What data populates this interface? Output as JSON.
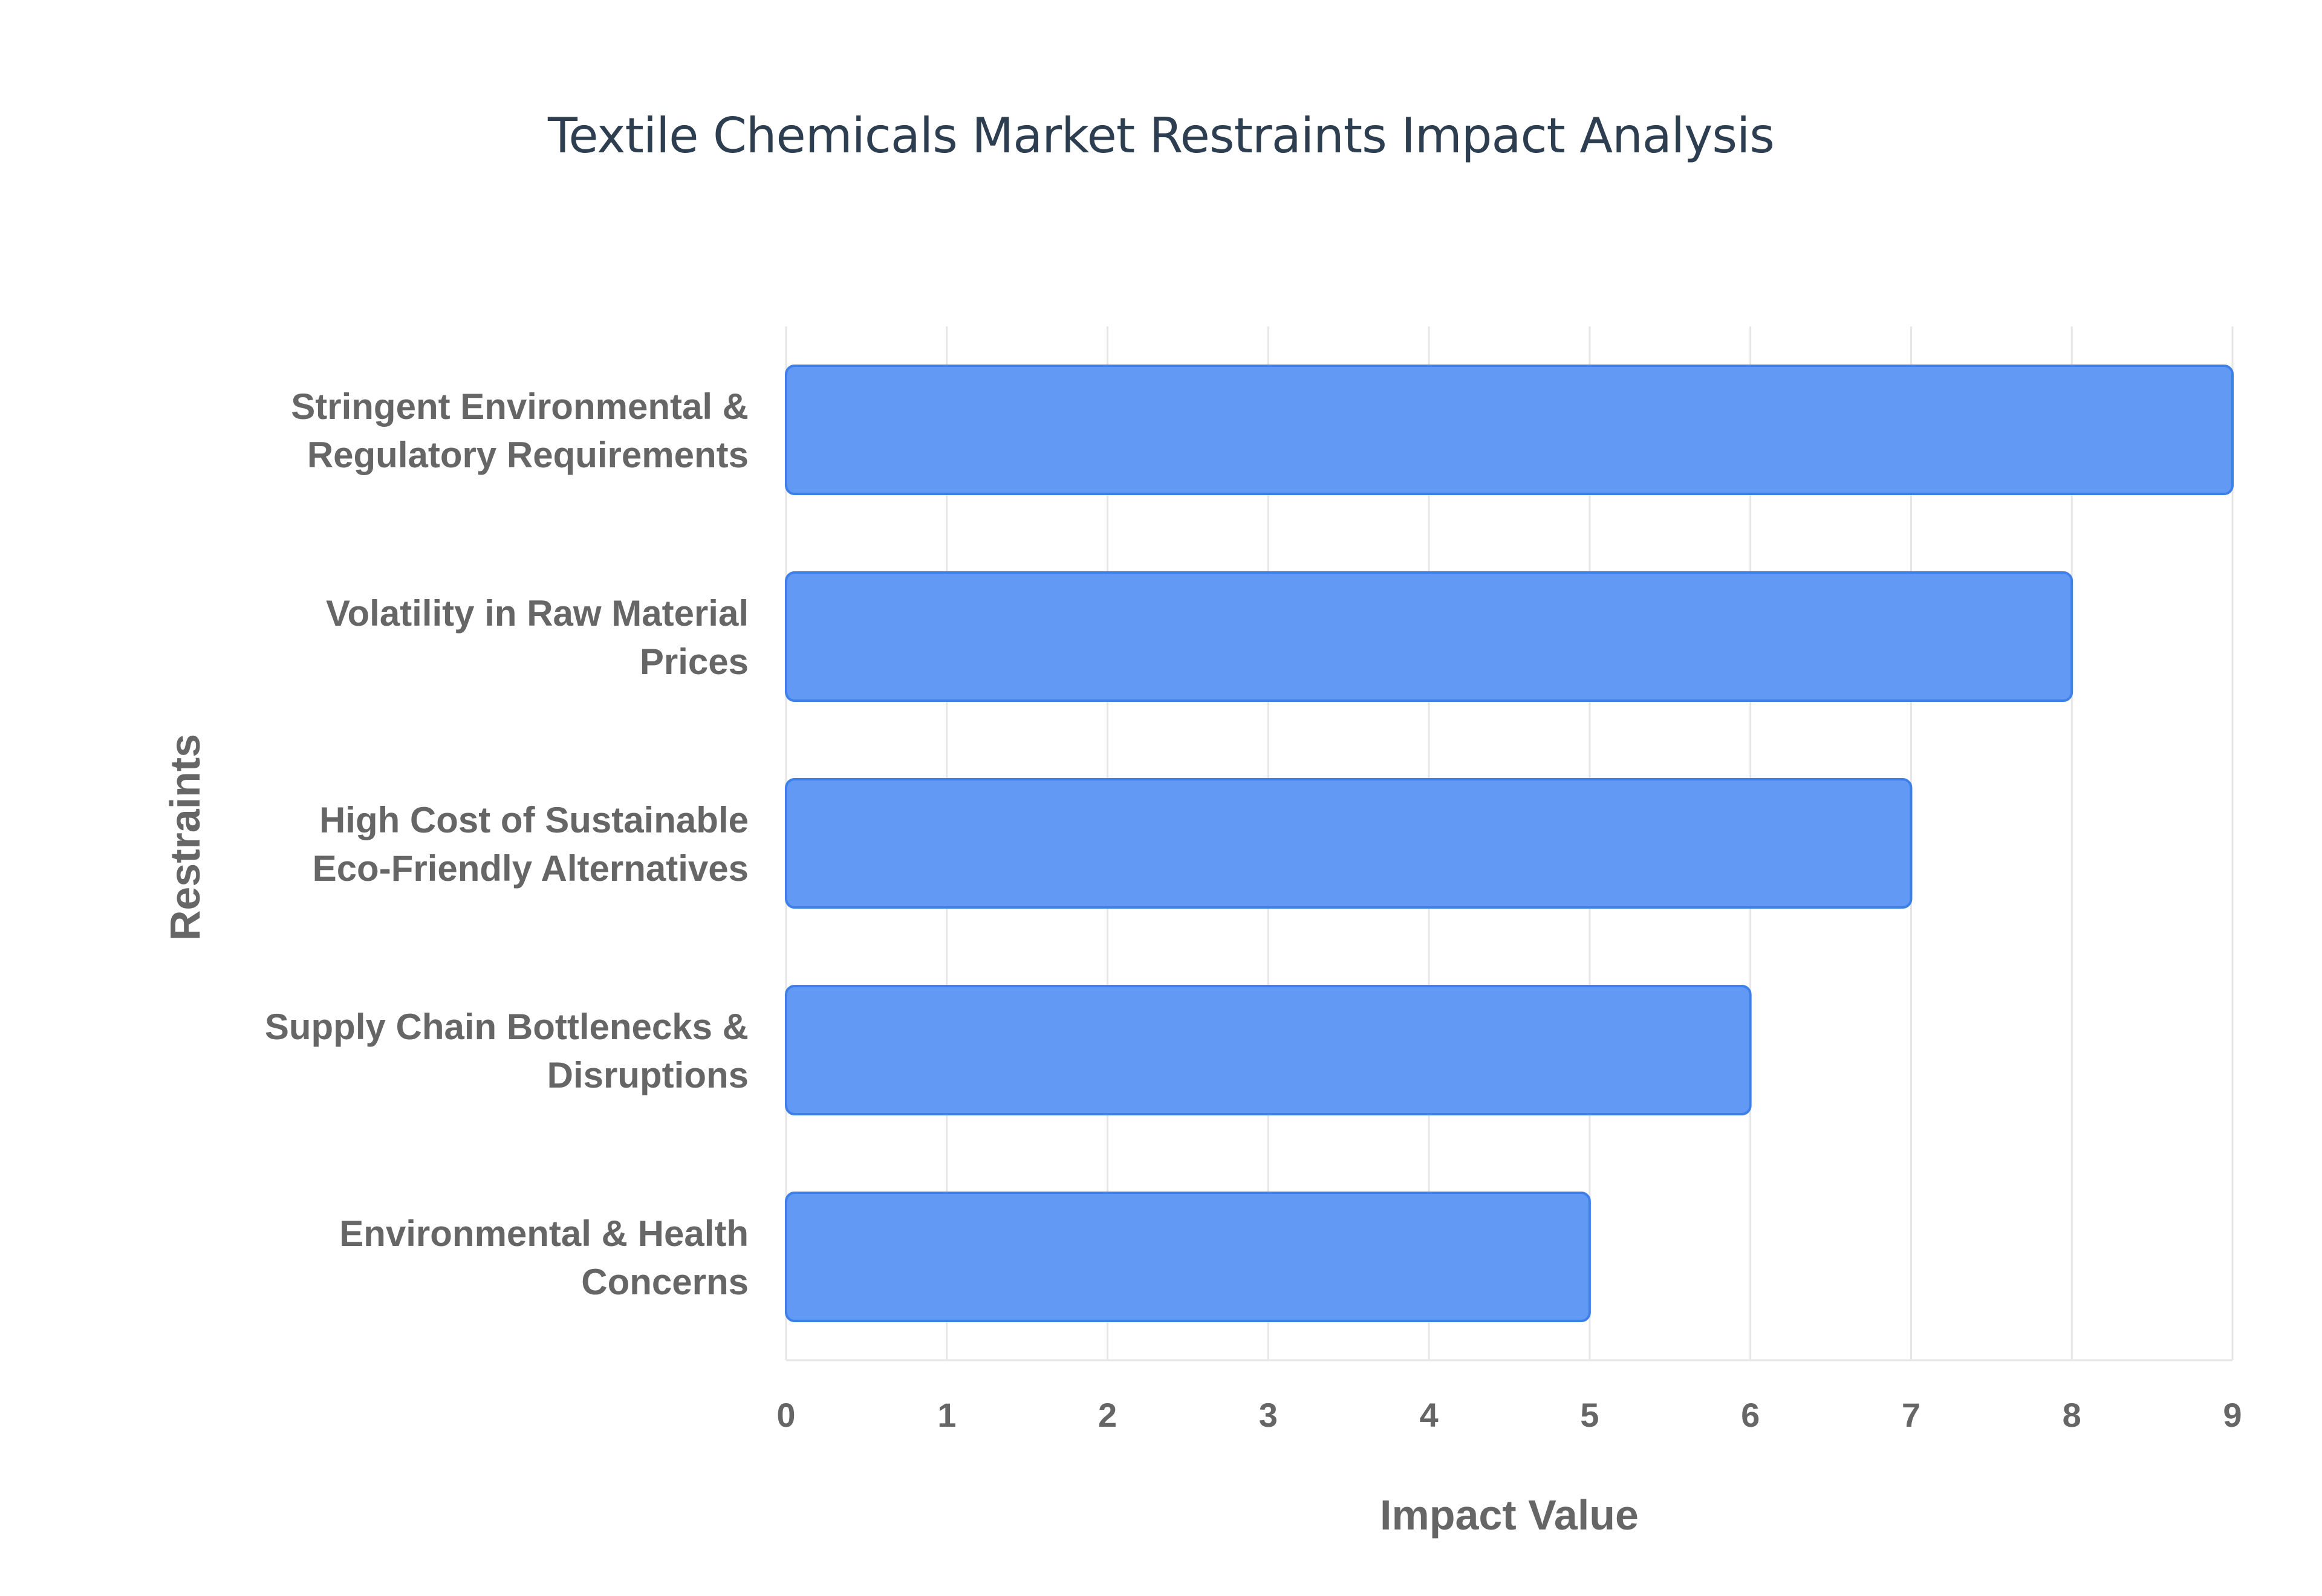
{
  "chart_data": {
    "type": "bar",
    "orientation": "horizontal",
    "title": "Textile Chemicals Market Restraints Impact Analysis",
    "xlabel": "Impact Value",
    "ylabel": "Restraints",
    "categories": [
      [
        "Stringent Environmental &",
        "Regulatory Requirements"
      ],
      [
        "Volatility in Raw Material",
        "Prices"
      ],
      [
        "High Cost of Sustainable",
        "Eco-Friendly Alternatives"
      ],
      [
        "Supply Chain Bottlenecks &",
        "Disruptions"
      ],
      [
        "Environmental & Health",
        "Concerns"
      ]
    ],
    "values": [
      9,
      8,
      7,
      6,
      5
    ],
    "xlim": [
      0,
      9
    ],
    "x_ticks": [
      "0",
      "1",
      "2",
      "3",
      "4",
      "5",
      "6",
      "7",
      "8",
      "9"
    ],
    "grid": true,
    "legend": "none",
    "colors": {
      "bar_fill": "#6199f5",
      "bar_stroke": "#3f7fe8",
      "grid": "#e6e6e6",
      "axis_text": "#666666",
      "title": "#2c3e50"
    }
  }
}
